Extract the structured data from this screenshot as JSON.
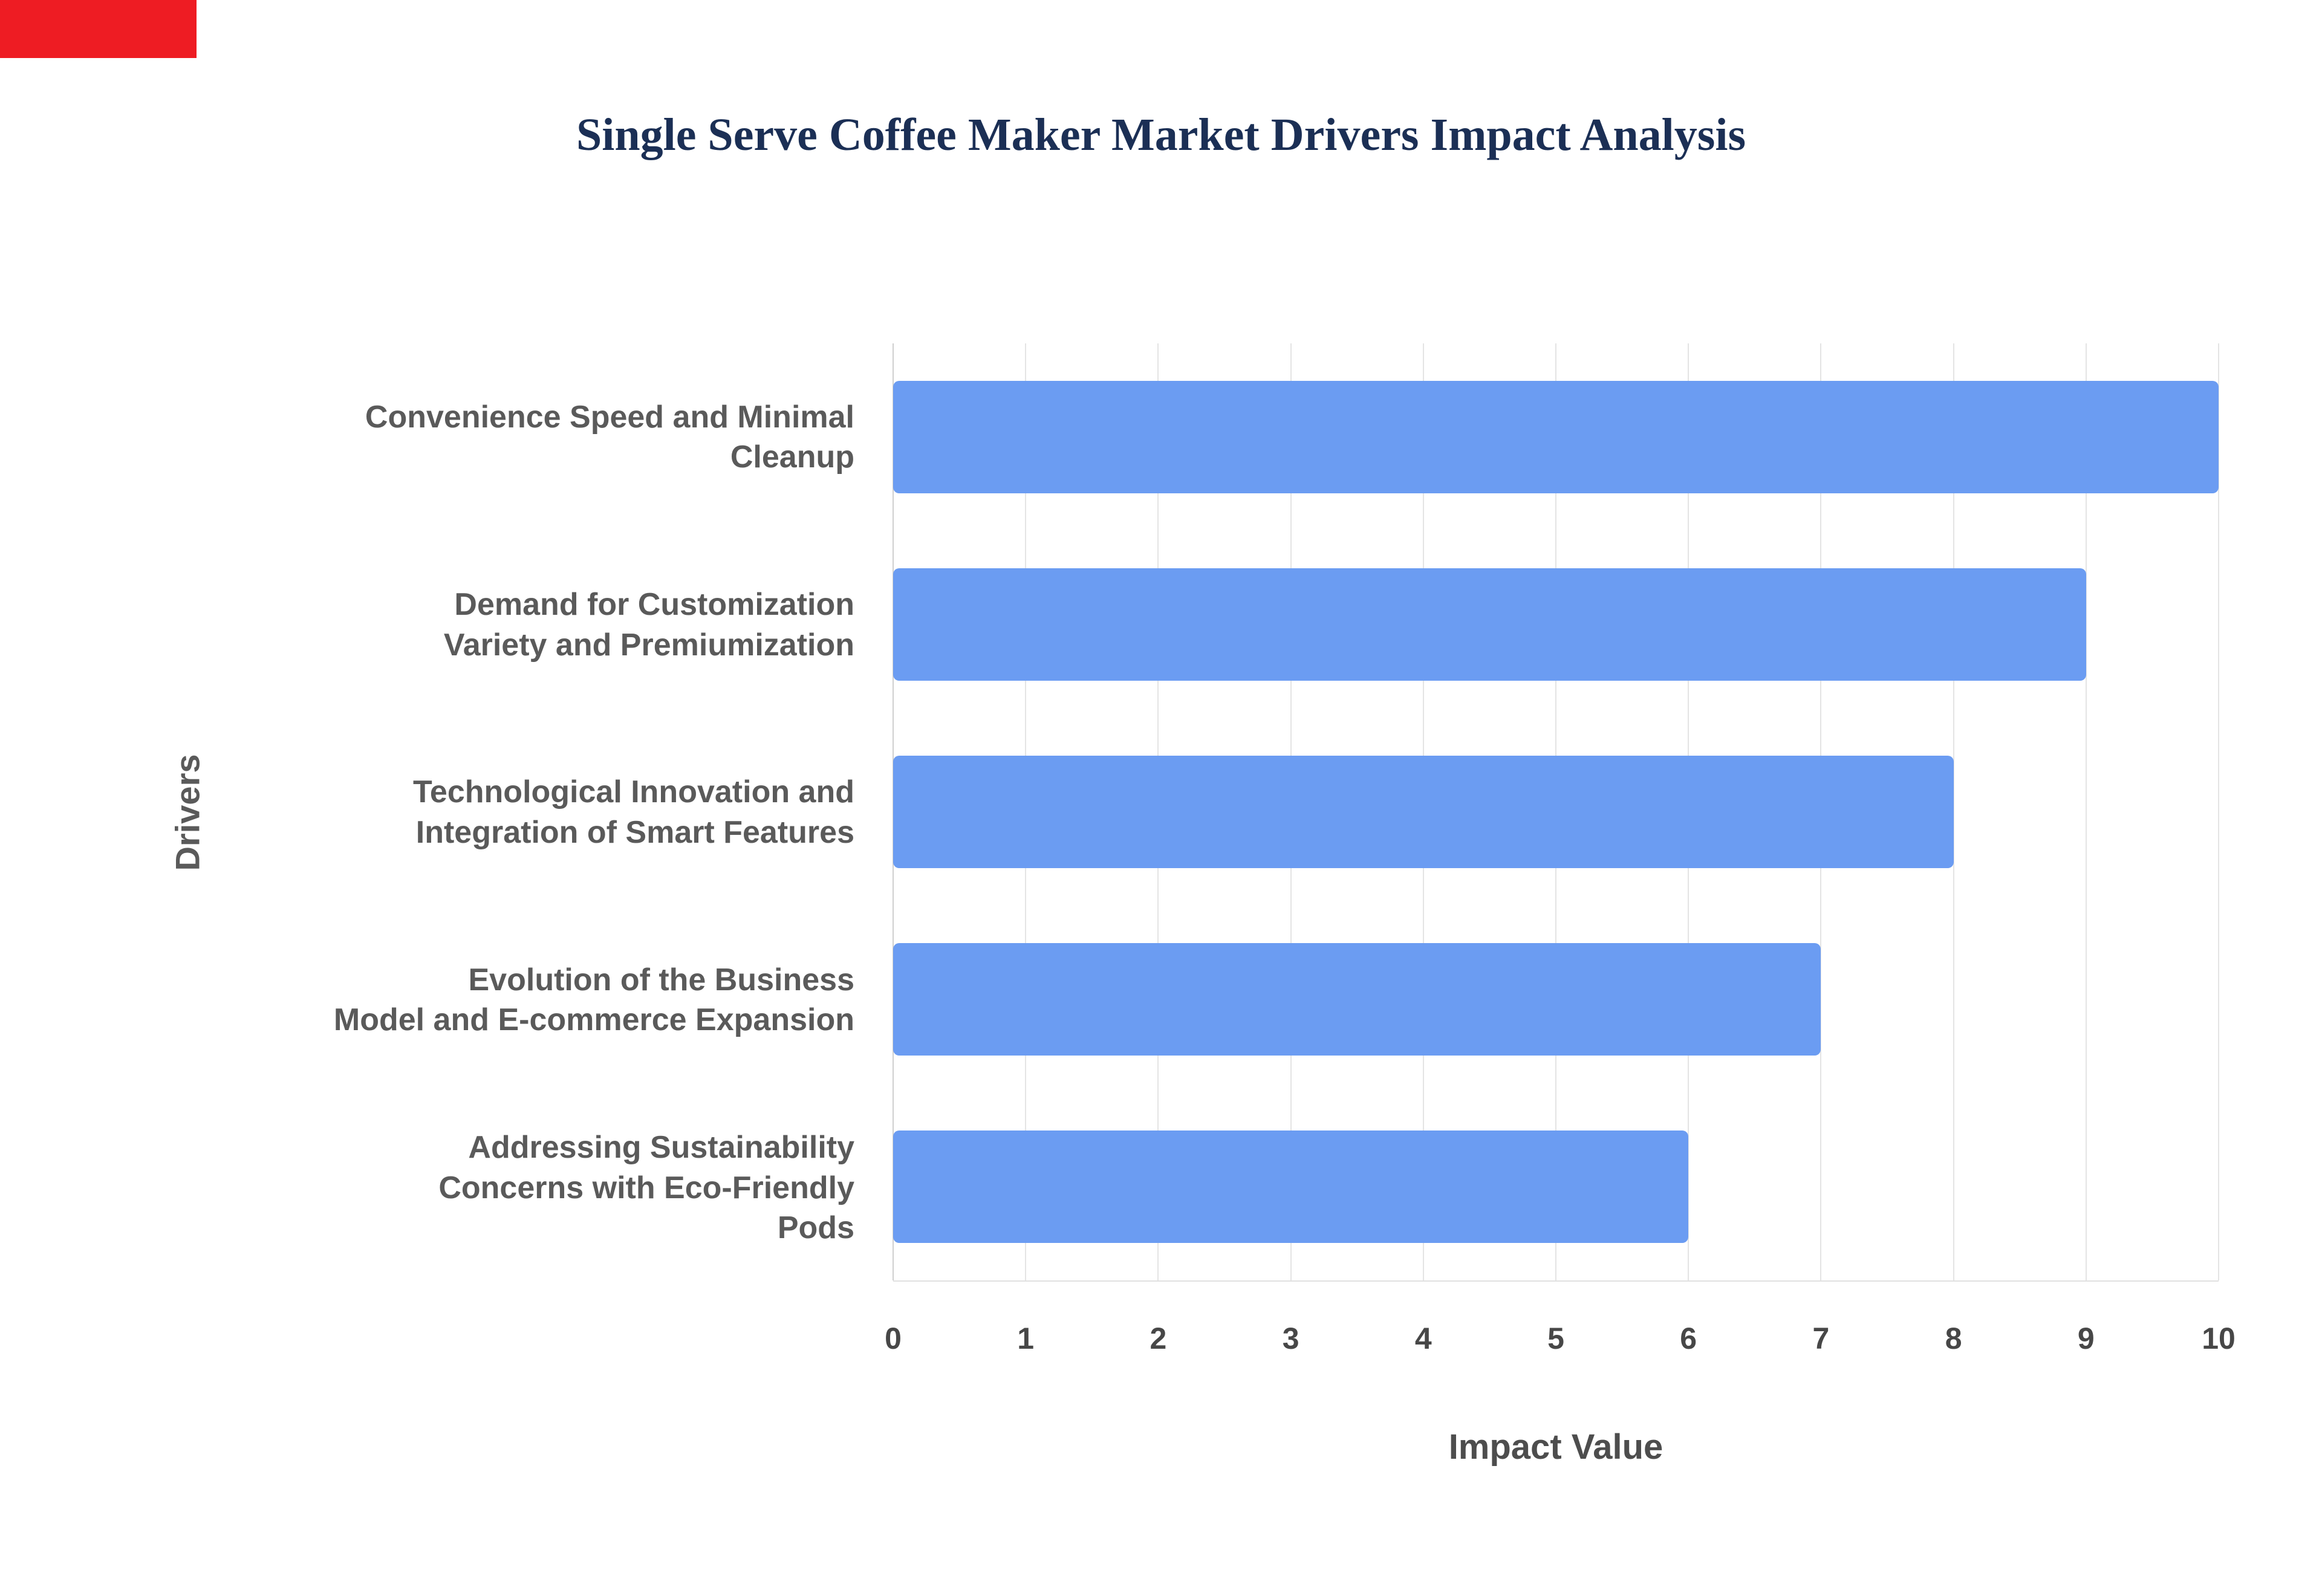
{
  "corner_marker": {
    "color": "#ee1c23"
  },
  "chart_data": {
    "type": "bar",
    "orientation": "horizontal",
    "title": "Single Serve Coffee Maker Market Drivers Impact Analysis",
    "categories": [
      "Convenience Speed and Minimal\nCleanup",
      "Demand for Customization\nVariety and Premiumization",
      "Technological Innovation and\nIntegration of Smart Features",
      "Evolution of the Business\nModel and E-commerce Expansion",
      "Addressing Sustainability\nConcerns with Eco-Friendly\nPods"
    ],
    "values": [
      10,
      9,
      8,
      7,
      6
    ],
    "xlabel": "Impact Value",
    "ylabel": "Drivers",
    "xlim": [
      0,
      10
    ],
    "xticks": [
      0,
      1,
      2,
      3,
      4,
      5,
      6,
      7,
      8,
      9,
      10
    ],
    "grid": true,
    "legend": "none",
    "bar_color": "#6b9cf2",
    "title_color": "#1b2f55",
    "label_color": "#5a5a5a",
    "grid_color": "#e4e4e4"
  }
}
